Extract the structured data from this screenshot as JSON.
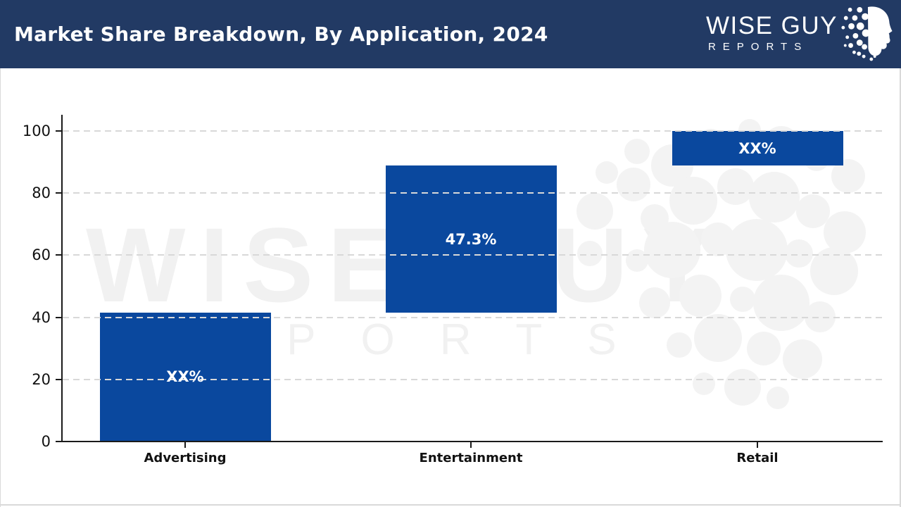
{
  "header": {
    "title": "Market Share Breakdown, By Application, 2024",
    "logo": {
      "line1": "WISE GUY",
      "line2": "REPORTS"
    }
  },
  "watermark": {
    "line1": "WISE GUY",
    "line2": "REPORTS"
  },
  "chart_data": {
    "type": "bar",
    "variant": "waterfall",
    "title": "Market Share Breakdown, By Application, 2024",
    "xlabel": "",
    "ylabel": "",
    "categories": [
      "Advertising",
      "Entertainment",
      "Retail"
    ],
    "bars": [
      {
        "category": "Advertising",
        "start": 0,
        "end": 41.5,
        "label": "XX%"
      },
      {
        "category": "Entertainment",
        "start": 41.5,
        "end": 88.8,
        "label": "47.3%"
      },
      {
        "category": "Retail",
        "start": 88.8,
        "end": 100,
        "label": "XX%"
      }
    ],
    "ylim": [
      0,
      100
    ],
    "yticks": [
      0,
      20,
      40,
      60,
      80,
      100
    ],
    "grid": "horizontal-dashed",
    "legend": "none",
    "bar_color": "#0a489e",
    "label_color": "#ffffff"
  }
}
